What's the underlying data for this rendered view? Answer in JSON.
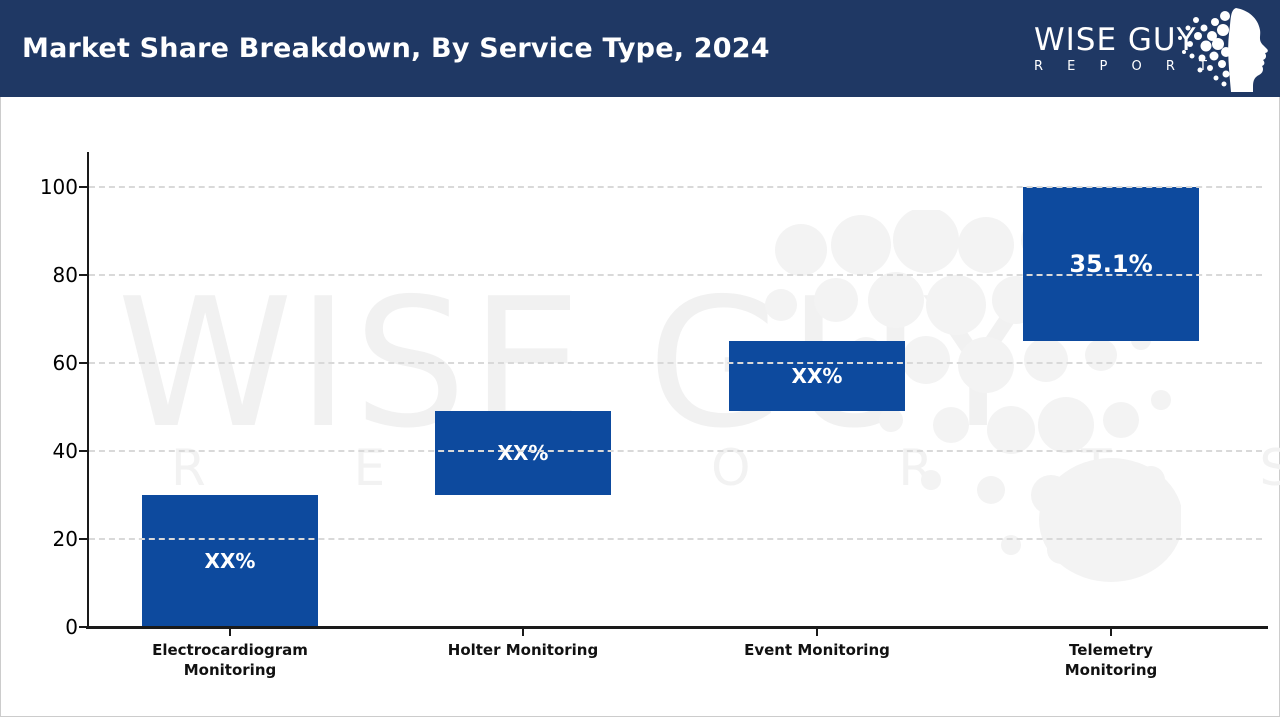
{
  "header": {
    "title": "Market Share Breakdown, By Service Type, 2024",
    "logo": {
      "wordmark": "WISE GUY",
      "sub": "R E P O R T S"
    }
  },
  "watermark": {
    "big": "WISE GUY",
    "sub": "R E P O R T S"
  },
  "colors": {
    "header_bg": "#1f3864",
    "bar": "#0d4a9e",
    "grid": "#d9d9d9",
    "axis": "#1a1a1a",
    "watermark": "#f1f1f1"
  },
  "chart_data": {
    "type": "bar",
    "subtype": "floating-waterfall",
    "title": "Market Share Breakdown, By Service Type, 2024",
    "xlabel": "",
    "ylabel": "",
    "ylim": [
      0,
      100
    ],
    "yticks": [
      0,
      20,
      40,
      60,
      80,
      100
    ],
    "grid": "horizontal-dashed",
    "legend": "none",
    "categories": [
      "Electrocardiogram Monitoring",
      "Holter Monitoring",
      "Event Monitoring",
      "Telemetry Monitoring"
    ],
    "category_lines": [
      [
        "Electrocardiogram",
        "Monitoring"
      ],
      [
        "Holter Monitoring"
      ],
      [
        "Event Monitoring"
      ],
      [
        "Telemetry",
        "Monitoring"
      ]
    ],
    "bars": [
      {
        "category": "Electrocardiogram Monitoring",
        "start": 0,
        "end": 30,
        "height": 30,
        "value_label": "XX%"
      },
      {
        "category": "Holter Monitoring",
        "start": 30,
        "end": 49.1,
        "height": 19.1,
        "value_label": "XX%"
      },
      {
        "category": "Event Monitoring",
        "start": 49.1,
        "end": 64.9,
        "height": 15.8,
        "value_label": "XX%"
      },
      {
        "category": "Telemetry Monitoring",
        "start": 64.9,
        "end": 100,
        "height": 35.1,
        "value_label": "35.1%"
      }
    ]
  }
}
